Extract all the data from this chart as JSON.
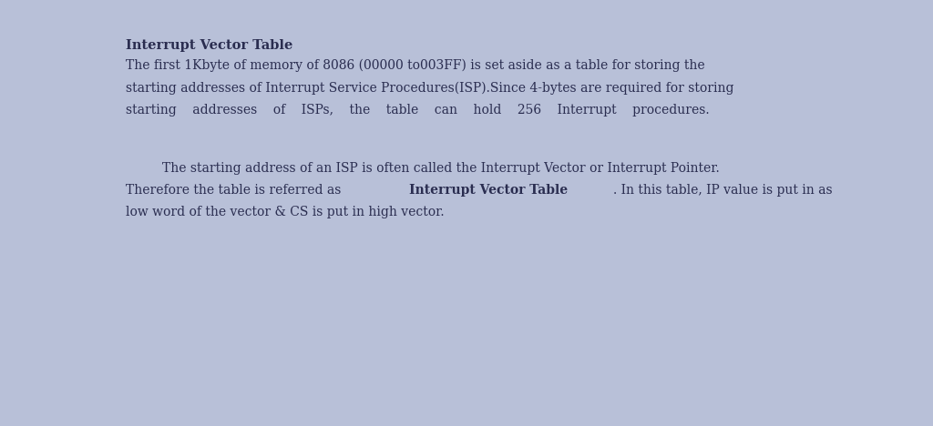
{
  "background_color": "#b8c0d8",
  "title": "Interrupt Vector Table",
  "title_fontsize": 10.5,
  "para1_lines": [
    "The first 1Kbyte of memory of 8086 (00000 to003FF) is set aside as a table for storing the",
    "starting addresses of Interrupt Service Procedures(ISP).Since 4-bytes are required for storing",
    "starting    addresses    of    ISPs,    the    table    can    hold    256    Interrupt    procedures."
  ],
  "para1_fontsize": 10.0,
  "para2_line1": "The starting address of an ISP is often called the Interrupt Vector or Interrupt Pointer.",
  "para2_line2_plain1": "Therefore the table is referred as ",
  "para2_line2_bold": "Interrupt Vector Table",
  "para2_line2_plain2": ". In this table, IP value is put in as",
  "para2_line3": "low word of the vector & CS is put in high vector.",
  "para2_fontsize": 10.0,
  "text_color": "#2a2d50"
}
